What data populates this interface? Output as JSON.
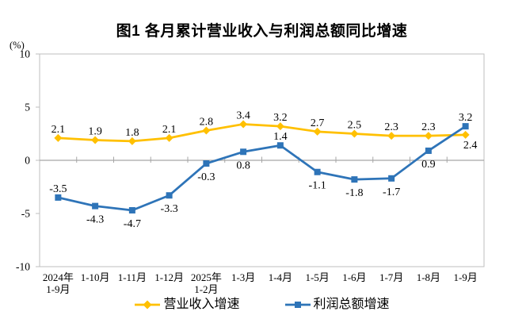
{
  "title": "图1 各月累计营业收入与利润总额同比增速",
  "unit_label": "(%)",
  "legend": {
    "revenue": "营业收入增速",
    "profit": "利润总额增速"
  },
  "colors": {
    "revenue": "#FFC000",
    "profit": "#2E74B8",
    "plot_border": "#BFBFBF",
    "zero_line": "#A6A6A6",
    "text": "#000000"
  },
  "chart_data": {
    "type": "line",
    "title": "图1 各月累计营业收入与利润总额同比增速",
    "ylabel": "(%)",
    "ylim": [
      -10,
      10
    ],
    "yticks": [
      10,
      5,
      0,
      -5,
      -10
    ],
    "grid": "zero-baseline-only",
    "legend_position": "bottom",
    "categories": [
      "2024年 1-9月",
      "1-10月",
      "1-11月",
      "1-12月",
      "2025年 1-2月",
      "1-3月",
      "1-4月",
      "1-5月",
      "1-6月",
      "1-7月",
      "1-8月",
      "1-9月"
    ],
    "category_lines": [
      [
        "2024年",
        "1-9月"
      ],
      [
        "1-10月"
      ],
      [
        "1-11月"
      ],
      [
        "1-12月"
      ],
      [
        "2025年",
        "1-2月"
      ],
      [
        "1-3月"
      ],
      [
        "1-4月"
      ],
      [
        "1-5月"
      ],
      [
        "1-6月"
      ],
      [
        "1-7月"
      ],
      [
        "1-8月"
      ],
      [
        "1-9月"
      ]
    ],
    "series": [
      {
        "key": "revenue",
        "name": "营业收入增速",
        "color": "#FFC000",
        "marker": "diamond",
        "values": [
          2.1,
          1.9,
          1.8,
          2.1,
          2.8,
          3.4,
          3.2,
          2.7,
          2.5,
          2.3,
          2.3,
          2.4
        ],
        "label_pos": [
          "above",
          "above",
          "above",
          "above",
          "above",
          "above",
          "above",
          "above",
          "above",
          "above",
          "above",
          "below-right"
        ]
      },
      {
        "key": "profit",
        "name": "利润总额增速",
        "color": "#2E74B8",
        "marker": "square",
        "values": [
          -3.5,
          -4.3,
          -4.7,
          -3.3,
          -0.3,
          0.8,
          1.4,
          -1.1,
          -1.8,
          -1.7,
          0.9,
          3.2
        ],
        "label_pos": [
          "above",
          "below",
          "below",
          "below",
          "below",
          "below",
          "above",
          "below",
          "below",
          "below",
          "below",
          "above"
        ]
      }
    ]
  }
}
